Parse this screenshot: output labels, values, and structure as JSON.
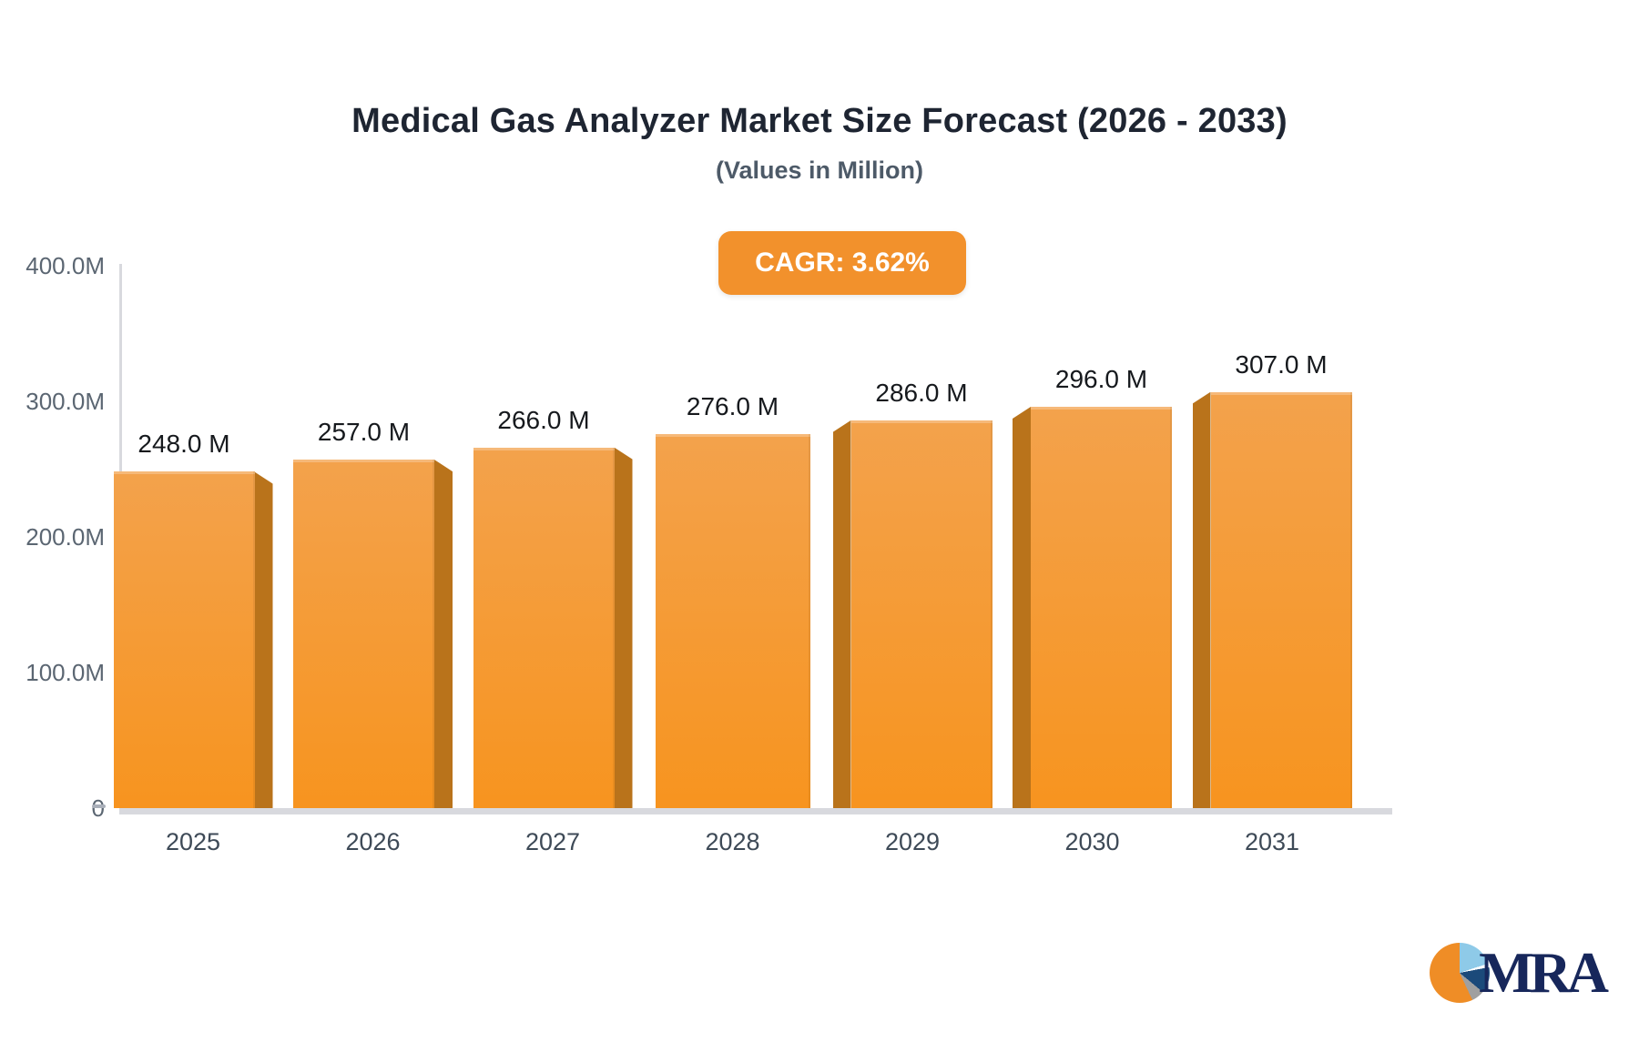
{
  "header": {
    "title": "Medical Gas Analyzer Market Size Forecast (2026 - 2033)",
    "subtitle": "(Values in Million)",
    "cagr_badge": "CAGR: 3.62%"
  },
  "chart_data": {
    "type": "bar",
    "title": "Medical Gas Analyzer Market Size Forecast (2026 - 2033)",
    "subtitle": "(Values in Million)",
    "cagr_label": "CAGR: 3.62%",
    "cagr_percent": 3.62,
    "categories": [
      "2025",
      "2026",
      "2027",
      "2028",
      "2029",
      "2030",
      "2031"
    ],
    "values": [
      248.0,
      257.0,
      266.0,
      276.0,
      286.0,
      296.0,
      307.0
    ],
    "bar_labels": [
      "248.0 M",
      "257.0 M",
      "266.0 M",
      "276.0 M",
      "286.0 M",
      "296.0 M",
      "307.0 M"
    ],
    "y_ticks": [
      {
        "label": "400.0M",
        "value": 400
      },
      {
        "label": "300.0M",
        "value": 300
      },
      {
        "label": "200.0M",
        "value": 200
      },
      {
        "label": "100.0M",
        "value": 100
      },
      {
        "label": "0",
        "value": 0
      }
    ],
    "ylim": [
      0,
      400
    ],
    "grid": false,
    "legend": false,
    "bar_style": "3d-perspective",
    "colors": {
      "bar_top": "#F3A24C",
      "bar_bottom": "#F7941F",
      "bar_side": "#B9731B",
      "axis": "#D8D9DE",
      "badge_bg": "#F2912C",
      "badge_text": "#FFFFFF",
      "title": "#1E2532",
      "subtitle": "#4D5A68",
      "y_label": "#5B6672",
      "x_label": "#3E4A57",
      "data_label": "#16191D"
    }
  },
  "logo": {
    "text": "MRA",
    "pie_colors": {
      "orange": "#EF8D26",
      "light_blue": "#8ECAE8",
      "navy": "#1B4A7A",
      "gray": "#A0A0A0"
    }
  }
}
